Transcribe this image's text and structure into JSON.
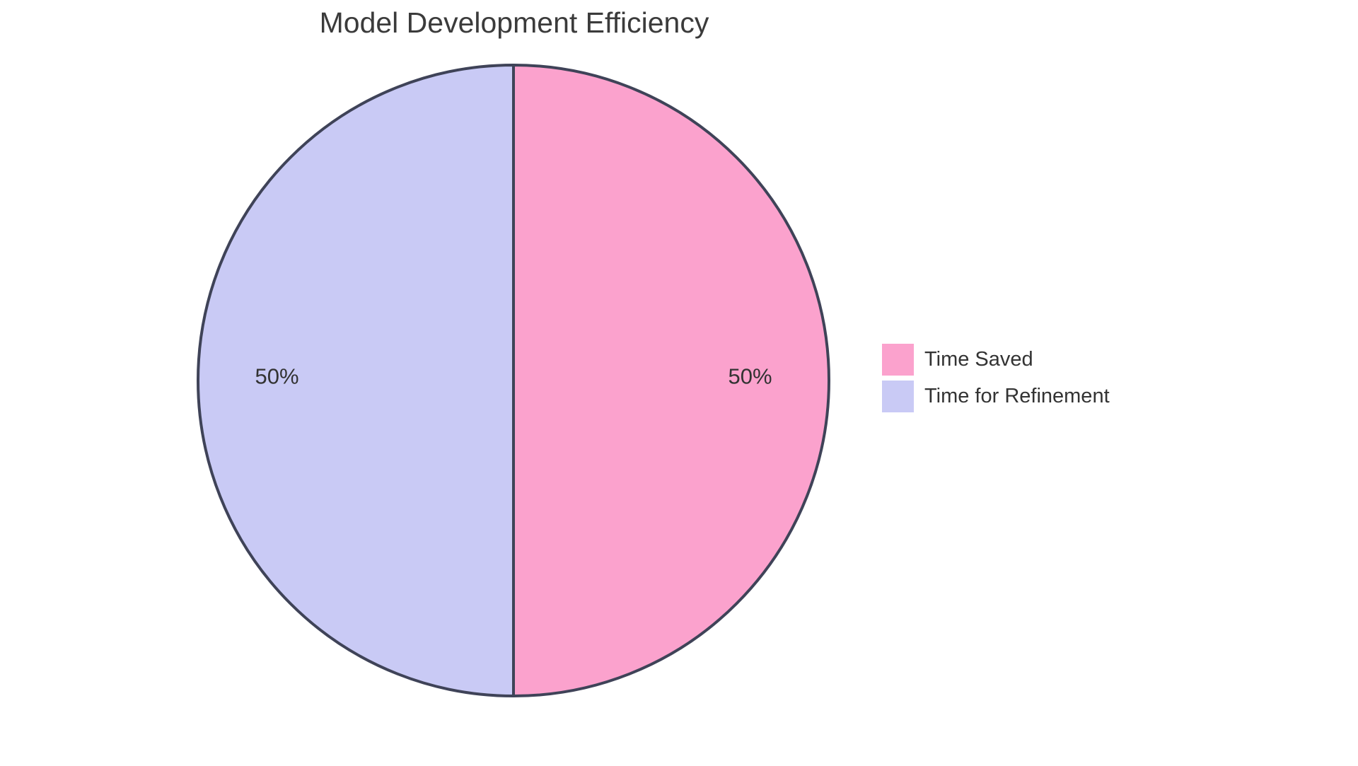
{
  "chart_data": {
    "type": "pie",
    "title": "Model Development Efficiency",
    "slices": [
      {
        "label": "Time Saved",
        "value": 50,
        "display": "50%",
        "color": "#FBA2CD"
      },
      {
        "label": "Time for Refinement",
        "value": 50,
        "display": "50%",
        "color": "#C9CAF5"
      }
    ],
    "start_angle_deg": 0,
    "direction": "clockwise",
    "legend_position": "right",
    "stroke_color": "#3F4358",
    "label_color": "#333333",
    "title_color": "#3B3B3B",
    "background": "#FFFFFF"
  }
}
